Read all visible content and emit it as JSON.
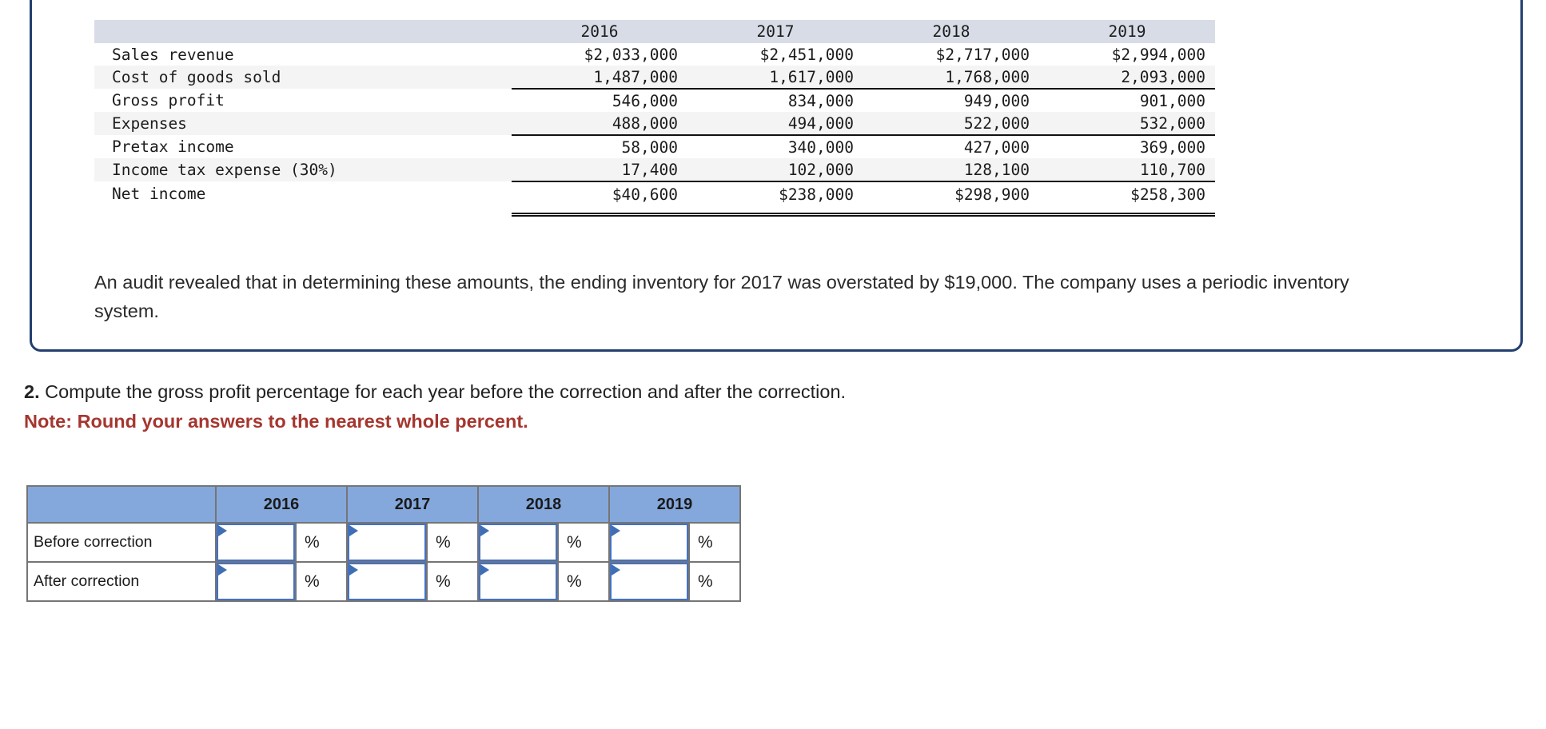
{
  "problem": {
    "financial_table": {
      "years": [
        "2016",
        "2017",
        "2018",
        "2019"
      ],
      "rows": [
        {
          "label": "Sales revenue",
          "values": [
            "$2,033,000",
            "$2,451,000",
            "$2,717,000",
            "$2,994,000"
          ],
          "underline": "none"
        },
        {
          "label": "Cost of goods sold",
          "values": [
            "1,487,000",
            "1,617,000",
            "1,768,000",
            "2,093,000"
          ],
          "underline": "single"
        },
        {
          "label": "Gross profit",
          "values": [
            "546,000",
            "834,000",
            "949,000",
            "901,000"
          ],
          "underline": "none"
        },
        {
          "label": "Expenses",
          "values": [
            "488,000",
            "494,000",
            "522,000",
            "532,000"
          ],
          "underline": "single"
        },
        {
          "label": "Pretax income",
          "values": [
            "58,000",
            "340,000",
            "427,000",
            "369,000"
          ],
          "underline": "none"
        },
        {
          "label": "Income tax expense (30%)",
          "values": [
            "17,400",
            "102,000",
            "128,100",
            "110,700"
          ],
          "underline": "single"
        },
        {
          "label": "Net income",
          "values": [
            "$40,600",
            "$238,000",
            "$298,900",
            "$258,300"
          ],
          "underline": "double"
        }
      ]
    },
    "audit_note": "An audit revealed that in determining these amounts, the ending inventory for 2017 was overstated by $19,000. The company uses a periodic inventory system."
  },
  "question": {
    "number": "2.",
    "text": "Compute the gross profit percentage for each year before the correction and after the correction.",
    "note": "Note: Round your answers to the nearest whole percent."
  },
  "answer_table": {
    "years": [
      "2016",
      "2017",
      "2018",
      "2019"
    ],
    "row_labels": [
      "Before correction",
      "After correction"
    ],
    "unit": "%",
    "input_values": [
      [
        "",
        "",
        "",
        ""
      ],
      [
        "",
        "",
        "",
        ""
      ]
    ]
  },
  "colors": {
    "panel_border": "#223f6f",
    "fin_header_bg": "#d8dce7",
    "fin_stripe_bg": "#f4f4f5",
    "note_red": "#a5362f",
    "answer_header_blue": "#84a8dc",
    "grid_gray": "#757575",
    "input_border_blue": "#4472c4",
    "input_flag_blue": "#3f6eb5"
  }
}
